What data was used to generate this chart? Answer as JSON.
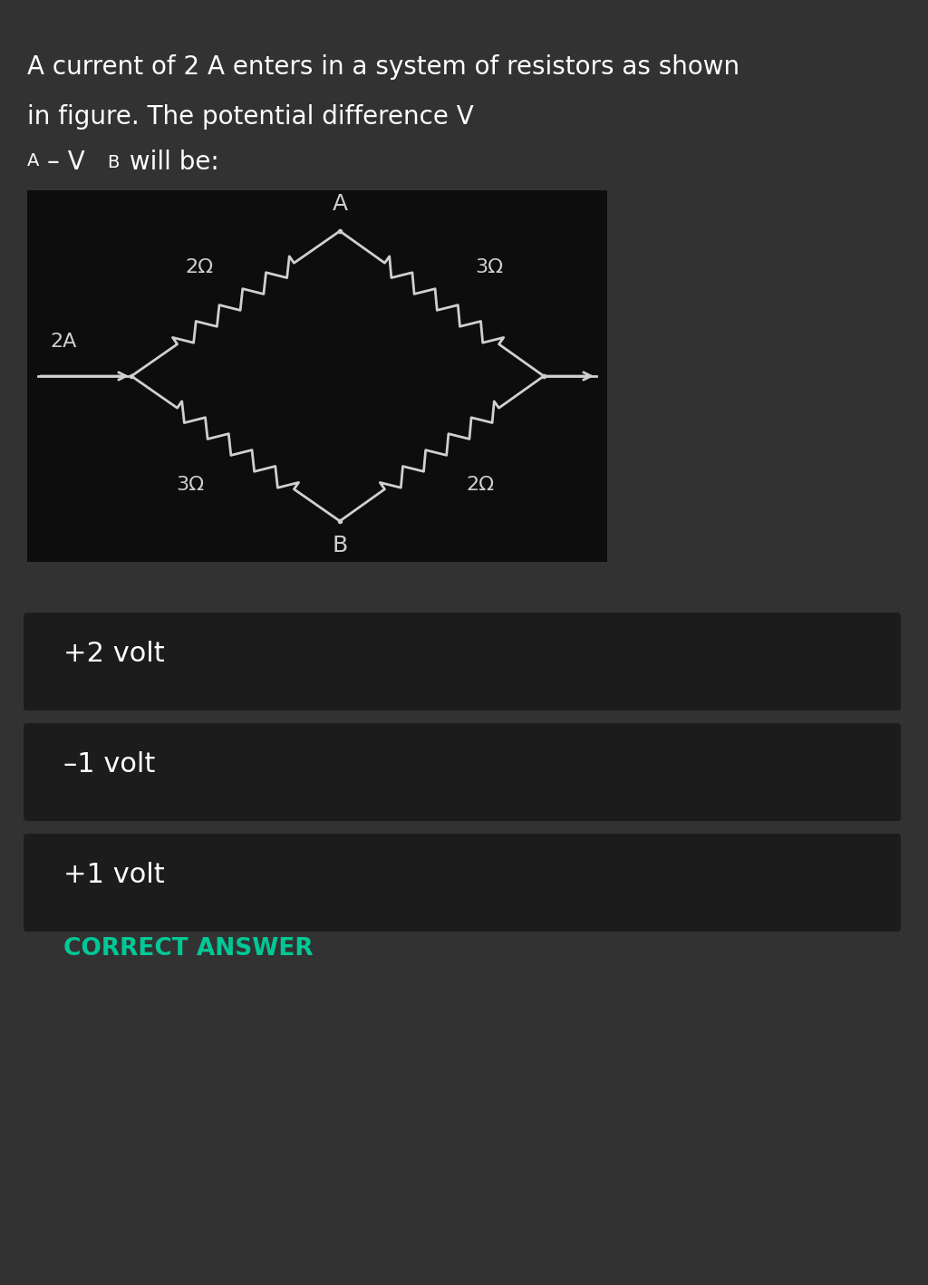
{
  "bg_color": "#323232",
  "circuit_bg": "#0d0d0d",
  "text_color": "#ffffff",
  "option_bg": "#1c1c1c",
  "correct_color": "#00c896",
  "title_line1": "A current of 2 A enters in a system of resistors as shown",
  "title_line2": "in figure. The potential difference V",
  "title_line3_a": "A",
  "title_line3_b": "B",
  "title_line3_end": " will be:",
  "options": [
    "+2 volt",
    "–1 volt",
    "+1 volt"
  ],
  "correct_label": "CORRECT ANSWER",
  "correct_index": 2,
  "circuit": {
    "resistors": {
      "top_left": {
        "label": "2Ω"
      },
      "top_right": {
        "label": "3Ω"
      },
      "bot_left": {
        "label": "3Ω"
      },
      "bot_right": {
        "label": "2Ω"
      }
    },
    "node_A_label": "A",
    "node_B_label": "B",
    "current_label": "2A",
    "wire_color": "#d0d0d0",
    "resistor_color": "#d0d0d0"
  }
}
